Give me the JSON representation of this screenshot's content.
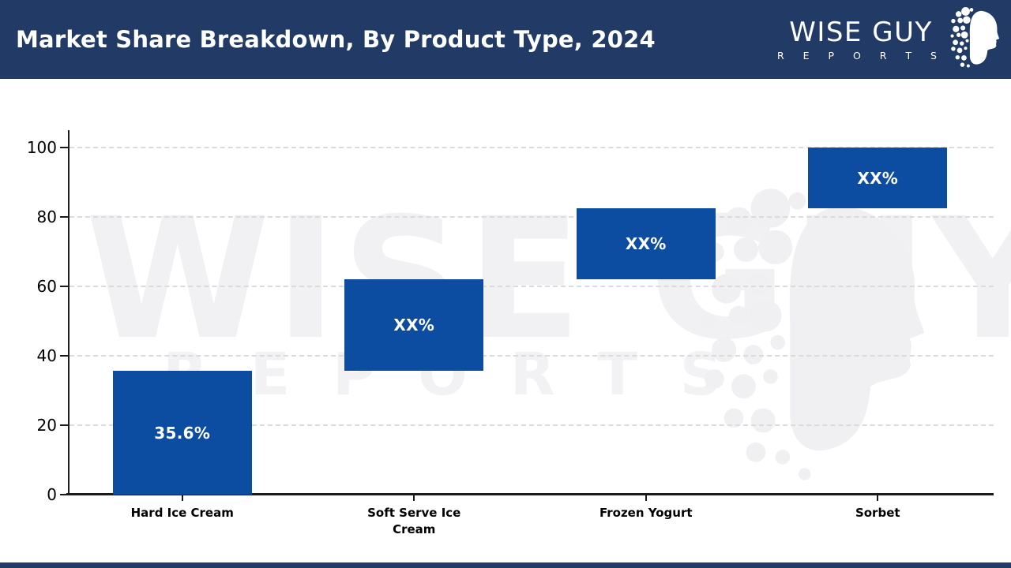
{
  "header": {
    "title": "Market Share Breakdown, By Product Type, 2024",
    "logo": {
      "word": "WISE GUY",
      "sub": "R E P O R T S"
    }
  },
  "watermark": {
    "word": "WISE GUY",
    "sub": "R E P O R T S"
  },
  "colors": {
    "header_bg": "#213A66",
    "footer_bg": "#213A66",
    "bar": "#0D4DA1",
    "bar_label": "#FFFFFF",
    "axis": "#1A1A1A",
    "grid": "#DBDBDB",
    "tick_label": "#000000",
    "watermark": "#F1F1F3"
  },
  "chart_data": {
    "type": "bar",
    "subtype": "waterfall",
    "title": "Market Share Breakdown, By Product Type, 2024",
    "categories": [
      "Hard Ice Cream",
      "Soft Serve Ice Cream",
      "Frozen Yogurt",
      "Sorbet"
    ],
    "segments": [
      {
        "category": "Hard Ice Cream",
        "start": 0,
        "end": 35.6,
        "label": "35.6%"
      },
      {
        "category": "Soft Serve Ice Cream",
        "start": 35.6,
        "end": 62.0,
        "label": "XX%"
      },
      {
        "category": "Frozen Yogurt",
        "start": 62.0,
        "end": 82.5,
        "label": "XX%"
      },
      {
        "category": "Sorbet",
        "start": 82.5,
        "end": 100,
        "label": "XX%"
      }
    ],
    "xlabel": "",
    "ylabel": "",
    "ylim": [
      0,
      100
    ],
    "yticks": [
      0,
      20,
      40,
      60,
      80,
      100
    ],
    "grid": "horizontal-dashed",
    "legend": "none"
  }
}
